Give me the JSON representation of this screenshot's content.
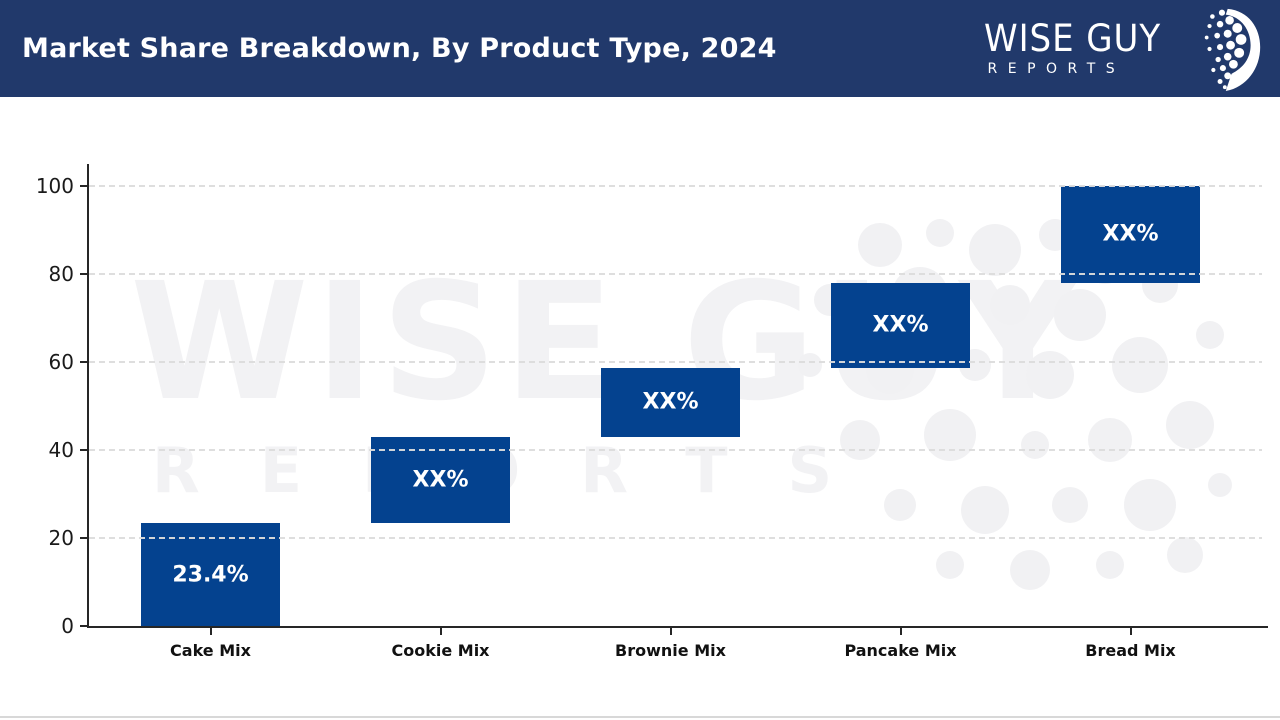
{
  "header": {
    "title": "Market Share Breakdown, By Product Type, 2024",
    "background_color": "#21396B",
    "logo": {
      "line1": "WISE GUY",
      "line2": "REPORTS"
    }
  },
  "watermark": {
    "line1": "WISE GUY",
    "line2": "REPORTS"
  },
  "chart_data": {
    "type": "bar",
    "subtype": "waterfall",
    "title": "Market Share Breakdown, By Product Type, 2024",
    "categories": [
      "Cake Mix",
      "Cookie Mix",
      "Brownie Mix",
      "Pancake Mix",
      "Bread Mix"
    ],
    "segments": [
      {
        "category": "Cake Mix",
        "start": 0,
        "end": 23.4,
        "label": "23.4%"
      },
      {
        "category": "Cookie Mix",
        "start": 23.4,
        "end": 43.0,
        "label": "XX%"
      },
      {
        "category": "Brownie Mix",
        "start": 43.0,
        "end": 58.6,
        "label": "XX%"
      },
      {
        "category": "Pancake Mix",
        "start": 58.6,
        "end": 78.0,
        "label": "XX%"
      },
      {
        "category": "Bread Mix",
        "start": 78.0,
        "end": 100,
        "label": "XX%"
      }
    ],
    "y_ticks": [
      0,
      20,
      40,
      60,
      80,
      100
    ],
    "ylim": [
      0,
      105
    ],
    "xlabel": "",
    "ylabel": "",
    "bar_color": "#04428F",
    "label_color": "#ffffff",
    "grid": true,
    "grid_style": "dashed",
    "legend": false
  }
}
